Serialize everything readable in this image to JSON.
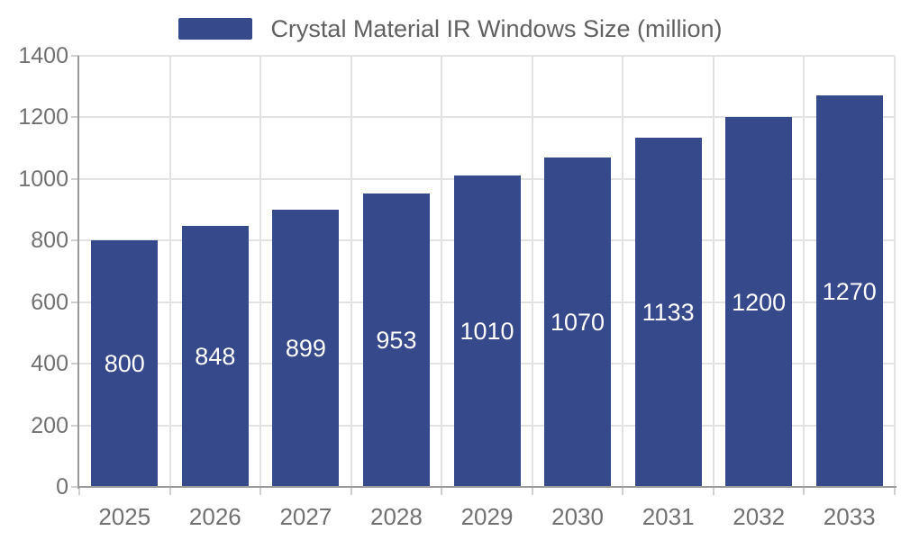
{
  "legend": {
    "label": "Crystal Material IR Windows Size (million)"
  },
  "colors": {
    "bar": "#36498A",
    "grid": "#E3E3E3",
    "axis": "#9A9A9A",
    "tick": "#CFCFCF",
    "tick_label": "#717171",
    "legend_text": "#616161",
    "data_label": "#FFFFFF",
    "background": "#FFFFFF"
  },
  "chart_data": {
    "type": "bar",
    "title": "",
    "series_name": "Crystal Material IR Windows Size (million)",
    "categories": [
      "2025",
      "2026",
      "2027",
      "2028",
      "2029",
      "2030",
      "2031",
      "2032",
      "2033"
    ],
    "values": [
      800,
      848,
      899,
      953,
      1010,
      1070,
      1133,
      1200,
      1270
    ],
    "data_labels": true,
    "data_label_position": "inside-center",
    "xlabel": "",
    "ylabel": "",
    "ylim": [
      0,
      1400
    ],
    "yticks": [
      0,
      200,
      400,
      600,
      800,
      1000,
      1200,
      1400
    ],
    "grid": true,
    "legend_position": "top-center"
  }
}
